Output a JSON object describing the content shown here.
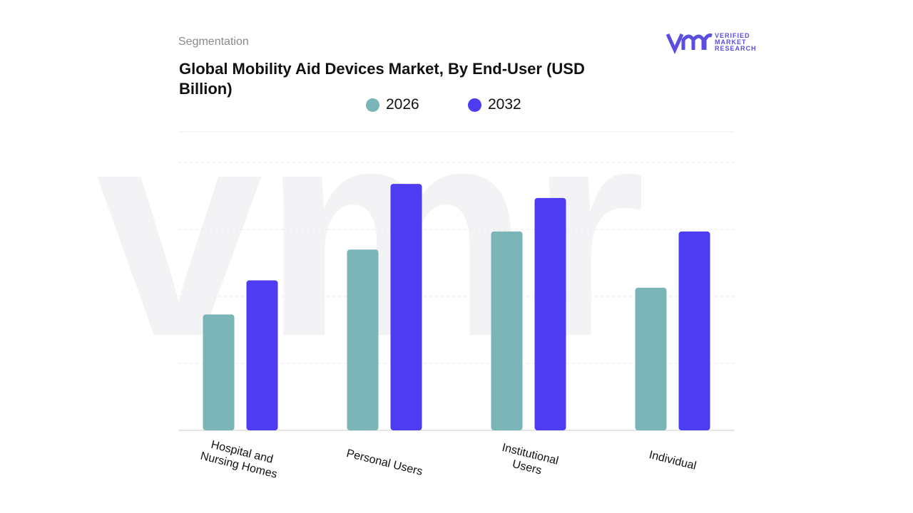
{
  "header": {
    "section": "Segmentation",
    "logo": [
      "VERIFIED",
      "MARKET",
      "RESEARCH"
    ]
  },
  "chart_data": {
    "type": "bar",
    "title": "Global Mobility Aid Devices Market, By End-User (USD Billion)",
    "categories": [
      "Hospital and Nursing Homes",
      "Personal Users",
      "Institutional Users",
      "Individual"
    ],
    "series": [
      {
        "name": "2026",
        "color": "#7ab5b8",
        "values": [
          1.73,
          2.7,
          2.97,
          2.13
        ]
      },
      {
        "name": "2032",
        "color": "#4e3cf2",
        "values": [
          2.24,
          3.68,
          3.47,
          2.97
        ]
      }
    ],
    "ylim": [
      0,
      4.5
    ],
    "yticks": [
      0,
      1,
      2,
      3,
      4
    ],
    "grid": true
  }
}
